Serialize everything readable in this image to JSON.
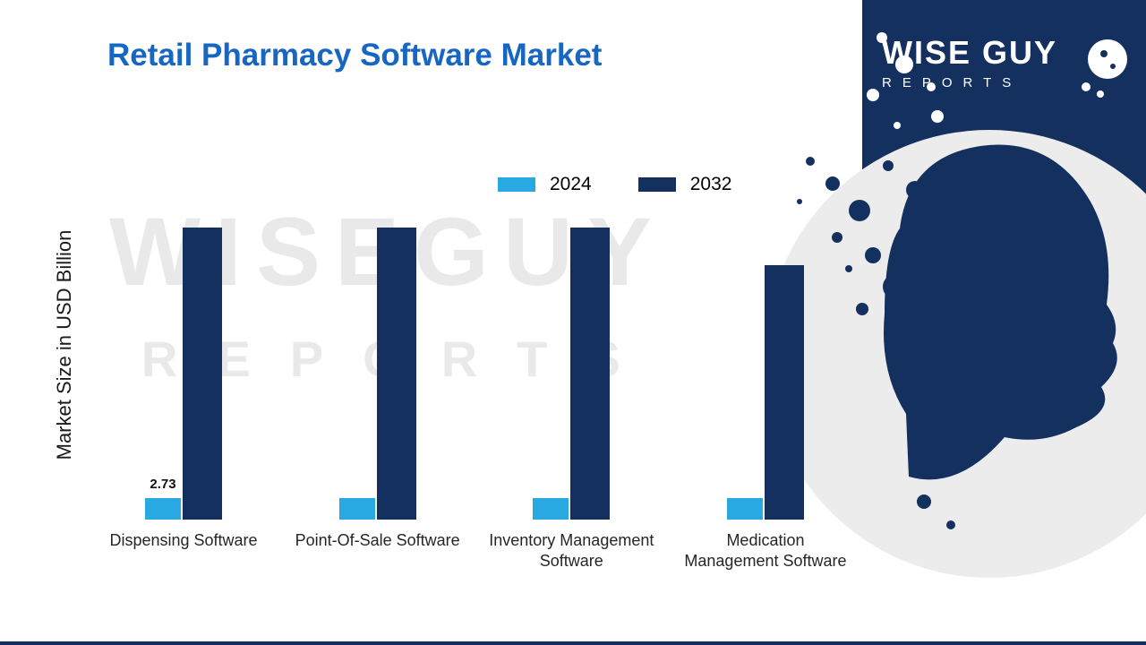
{
  "header": {
    "title": "Retail Pharmacy Software Market"
  },
  "logo": {
    "line1": "WISE GUY",
    "line2": "REPORTS"
  },
  "watermark": {
    "line1": "WISEGUY",
    "line2": "REPORTS"
  },
  "colors": {
    "accent_blue": "#1766C1",
    "navy": "#14305F",
    "light_blue": "#29A9E1",
    "watermark_gray": "#E9E9E9"
  },
  "chart_data": {
    "type": "bar",
    "title": "Retail Pharmacy Software Market",
    "xlabel": "",
    "ylabel": "Market Size in USD Billion",
    "categories": [
      "Dispensing Software",
      "Point-Of-Sale Software",
      "Inventory Management Software",
      "Medication Management Software"
    ],
    "series": [
      {
        "name": "2024",
        "color": "#29A9E1",
        "values": [
          2.73,
          2.73,
          2.73,
          2.73
        ]
      },
      {
        "name": "2032",
        "color": "#14305F",
        "values": [
          37.2,
          37.2,
          37.2,
          32.4
        ]
      }
    ],
    "ylim": [
      0,
      40
    ],
    "grid": false,
    "legend_position": "top",
    "annotations": [
      {
        "category_index": 0,
        "series": "2024",
        "text": "2.73"
      }
    ]
  }
}
